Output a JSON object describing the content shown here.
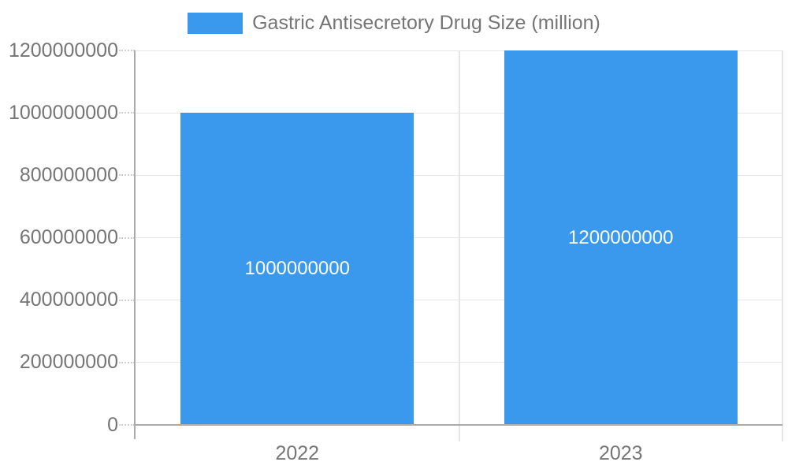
{
  "chart_data": {
    "type": "bar",
    "title": "",
    "legend_entries": [
      "Gastric Antisecretory Drug Size (million)"
    ],
    "legend_position": "top",
    "categories": [
      "2022",
      "2023"
    ],
    "series": [
      {
        "name": "Gastric Antisecretory Drug Size (million)",
        "values": [
          1000000000,
          1200000000
        ],
        "data_labels": [
          "1000000000",
          "1200000000"
        ]
      }
    ],
    "xlabel": "",
    "ylabel": "",
    "ylim": [
      0,
      1200000000
    ],
    "ytick_step": 200000000,
    "ytick_labels": [
      "0",
      "200000000",
      "400000000",
      "600000000",
      "800000000",
      "1000000000",
      "1200000000"
    ],
    "grid": true,
    "colors": {
      "bar": "#3A99EC",
      "axis_text": "#757575",
      "data_label_text": "#FFFFFF",
      "gridline": "#E6E6E6",
      "axis_line": "#ABABAB",
      "tick": "#CFCFCF",
      "background": "#FFFFFF"
    }
  }
}
